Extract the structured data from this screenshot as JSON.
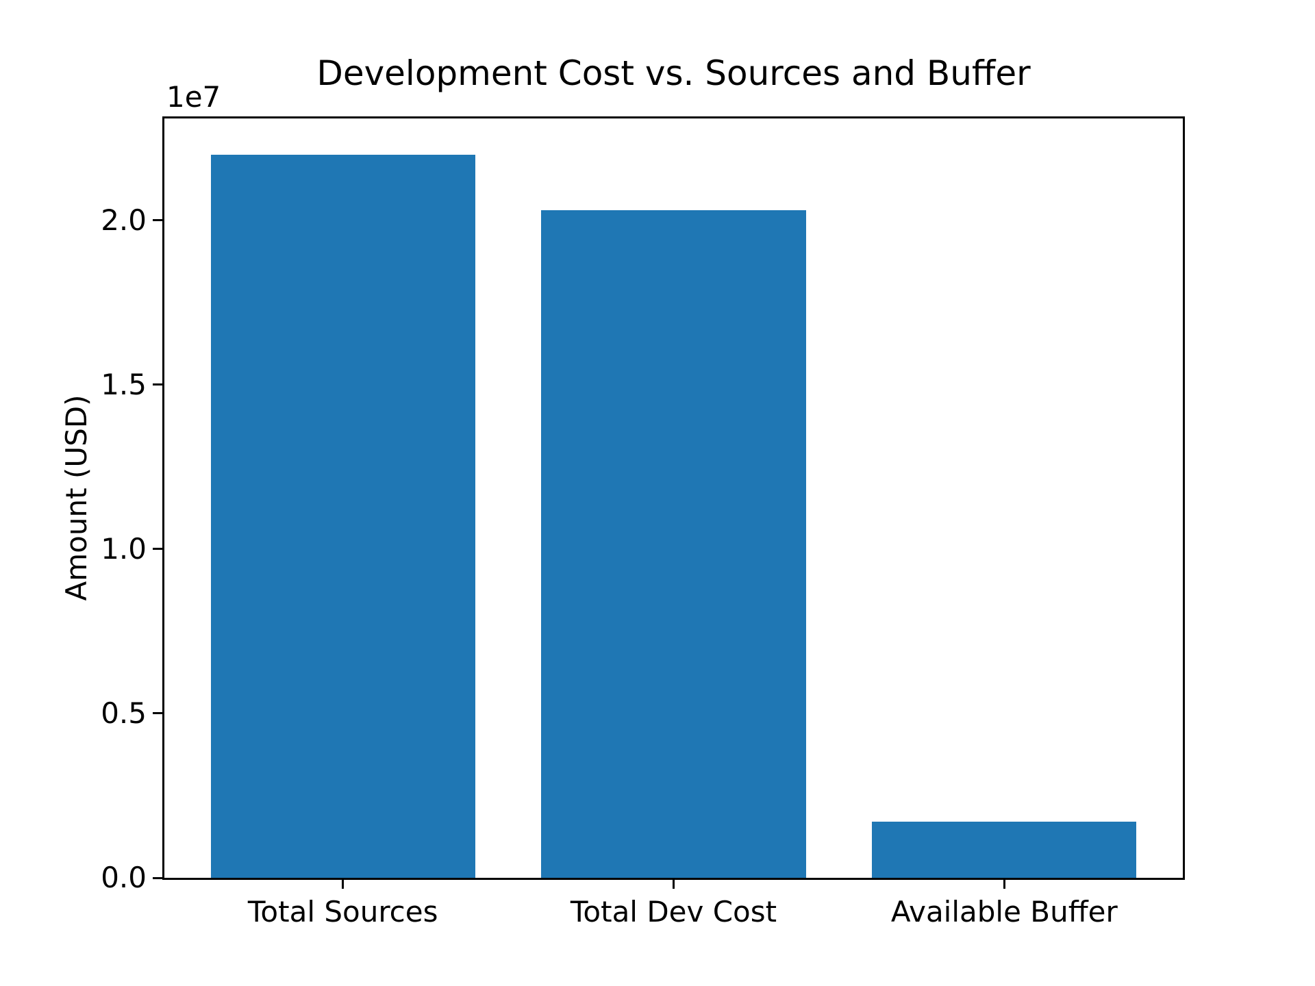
{
  "chart_data": {
    "type": "bar",
    "title": "Development Cost vs. Sources and Buffer",
    "ylabel": "Amount (USD)",
    "xlabel": "",
    "categories": [
      "Total Sources",
      "Total Dev Cost",
      "Available Buffer"
    ],
    "values": [
      22000000,
      20300000,
      1700000
    ],
    "bar_color": "#1f77b4",
    "axis_color": "#000000",
    "background_color": "#ffffff",
    "ylim": [
      0,
      23100000
    ],
    "yticks": [
      0,
      5000000,
      10000000,
      15000000,
      20000000
    ],
    "ytick_labels": [
      "0.0",
      "0.5",
      "1.0",
      "1.5",
      "2.0"
    ],
    "y_offset_label": "1e7",
    "grid": false,
    "legend": null,
    "bar_width_fraction": 0.8
  }
}
